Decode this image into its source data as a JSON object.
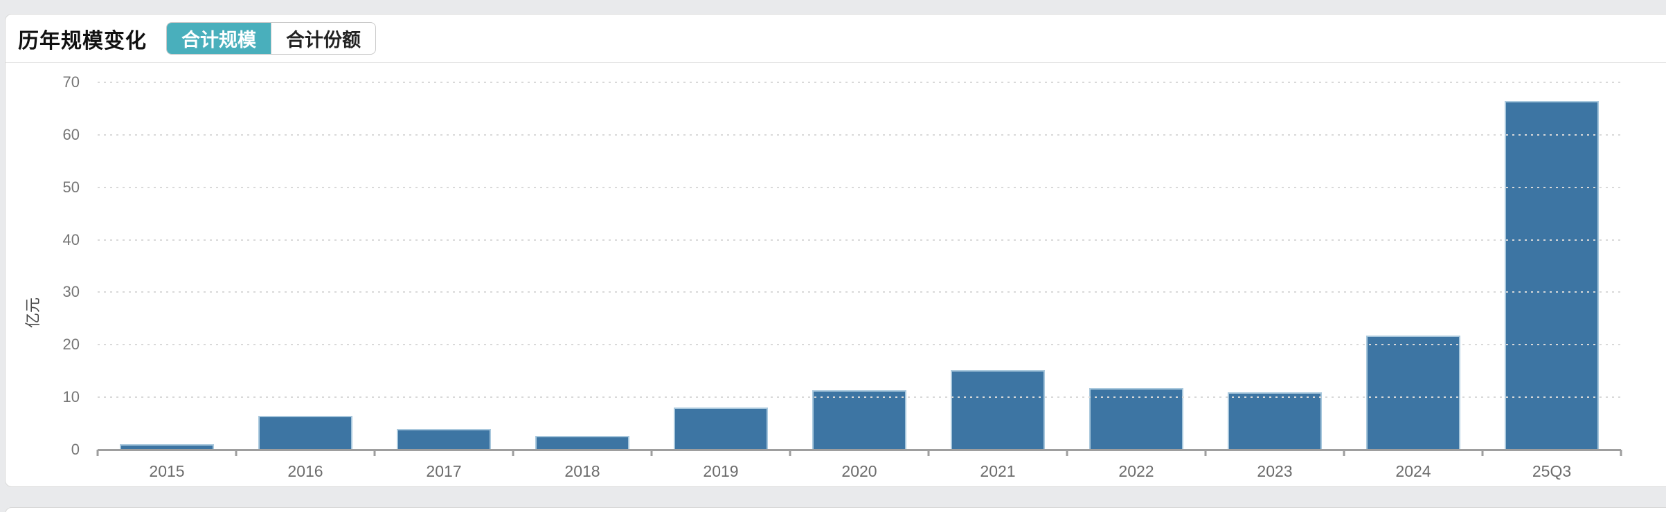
{
  "page": {
    "background": "#e9eaec"
  },
  "header": {
    "title": "历年规模变化",
    "tabs": [
      {
        "label": "合计规模",
        "active": true
      },
      {
        "label": "合计份额",
        "active": false
      }
    ]
  },
  "chart_data": {
    "type": "bar",
    "title": "历年规模变化",
    "series_name": "合计规模",
    "categories": [
      "2015",
      "2016",
      "2017",
      "2018",
      "2019",
      "2020",
      "2021",
      "2022",
      "2023",
      "2024",
      "25Q3"
    ],
    "values": [
      1.0,
      6.4,
      3.9,
      2.6,
      8.0,
      11.4,
      15.2,
      11.7,
      10.9,
      21.8,
      66.4
    ],
    "xlabel": "",
    "ylabel": "亿元",
    "ylim": [
      0,
      70
    ],
    "yticks": [
      0,
      10,
      20,
      30,
      40,
      50,
      60,
      70
    ],
    "grid": "horizontal-dotted",
    "legend": "none",
    "bar_color": "#3d75a3"
  },
  "colors": {
    "accent_teal": "#49afbc",
    "bar_blue": "#3d75a3",
    "axis_line": "#9e9e9e",
    "grid_line": "#d9d9d9",
    "tick_label": "#757575",
    "card_border": "#d9d9d9",
    "page_background": "#e9eaec"
  }
}
